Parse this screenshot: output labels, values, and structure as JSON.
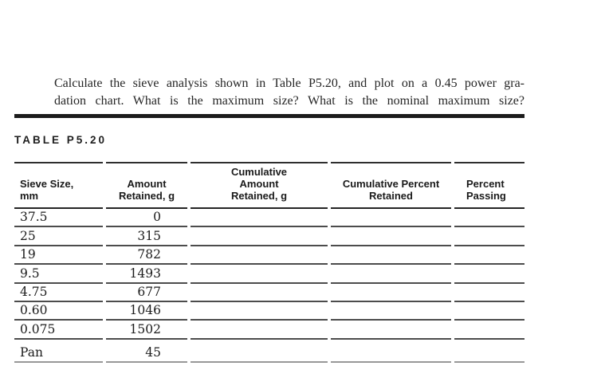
{
  "problem": {
    "line1": "Calculate the sieve analysis shown in Table P5.20, and plot on a 0.45 power gra-",
    "line2": "dation chart. What is the maximum size? What is the nominal maximum size?"
  },
  "table": {
    "label": "TABLE P5.20",
    "headers": {
      "sieve_size": "Sieve Size,\nmm",
      "amount_retained": "Amount\nRetained, g",
      "cumulative_amount": "Cumulative\nAmount\nRetained, g",
      "cumulative_percent": "Cumulative Percent\nRetained",
      "percent_passing": "Percent\nPassing"
    },
    "rows": [
      {
        "sieve_size": "37.5",
        "amount_retained": "0",
        "cumulative_amount": "",
        "cumulative_percent": "",
        "percent_passing": ""
      },
      {
        "sieve_size": "25",
        "amount_retained": "315",
        "cumulative_amount": "",
        "cumulative_percent": "",
        "percent_passing": ""
      },
      {
        "sieve_size": "19",
        "amount_retained": "782",
        "cumulative_amount": "",
        "cumulative_percent": "",
        "percent_passing": ""
      },
      {
        "sieve_size": "9.5",
        "amount_retained": "1493",
        "cumulative_amount": "",
        "cumulative_percent": "",
        "percent_passing": ""
      },
      {
        "sieve_size": "4.75",
        "amount_retained": "677",
        "cumulative_amount": "",
        "cumulative_percent": "",
        "percent_passing": ""
      },
      {
        "sieve_size": "0.60",
        "amount_retained": "1046",
        "cumulative_amount": "",
        "cumulative_percent": "",
        "percent_passing": ""
      },
      {
        "sieve_size": "0.075",
        "amount_retained": "1502",
        "cumulative_amount": "",
        "cumulative_percent": "",
        "percent_passing": ""
      },
      {
        "sieve_size": "Pan",
        "amount_retained": "45",
        "cumulative_amount": "",
        "cumulative_percent": "",
        "percent_passing": ""
      }
    ]
  },
  "colors": {
    "background": "#ffffff",
    "ink": "#1f1f1f",
    "heavy_rule": "#1c1c1c",
    "header_rule": "#2a2a2a",
    "row_rule": "#4c4c4c",
    "closing_rule": "#989898"
  }
}
